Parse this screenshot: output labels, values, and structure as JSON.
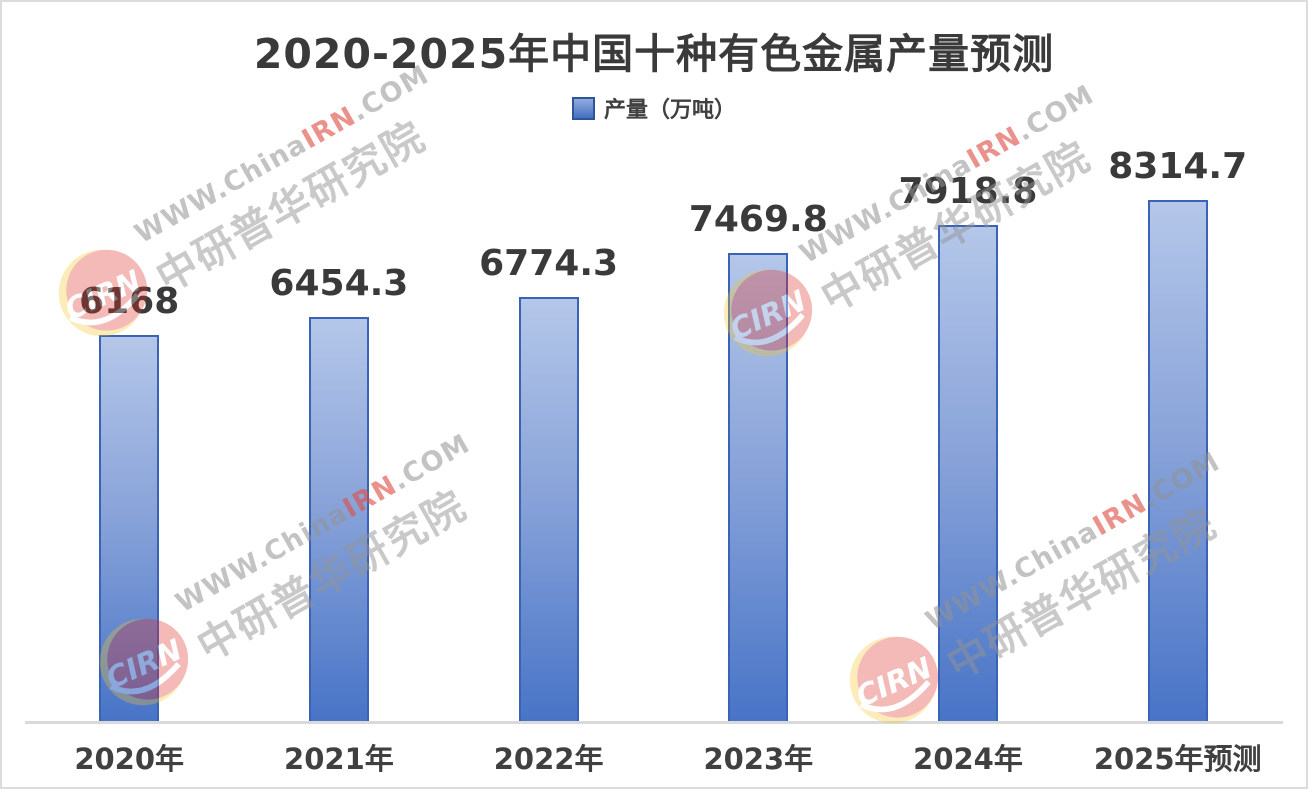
{
  "chart_data": {
    "type": "bar",
    "title": "2020-2025年中国十种有色金属产量预测",
    "legend_label": "产量（万吨）",
    "legend_position": "top-center",
    "categories": [
      "2020年",
      "2021年",
      "2022年",
      "2023年",
      "2024年",
      "2025年预测"
    ],
    "values": [
      6168,
      6454.3,
      6774.3,
      7469.8,
      7918.8,
      8314.7
    ],
    "value_labels": [
      "6168",
      "6454.3",
      "6774.3",
      "7469.8",
      "7918.8",
      "8314.7"
    ],
    "xlabel": "",
    "ylabel": "",
    "ylim": [
      0,
      8700
    ],
    "grid": false,
    "axis_line_color": "#d9d9d9",
    "bar_color_top": "#b4c7e9",
    "bar_color_bottom": "#4874c7",
    "bar_border_color": "#3a63b8",
    "title_color": "#3a3a3a",
    "label_color": "#404040"
  },
  "watermark": {
    "url_prefix": "WWW.China",
    "url_highlight": "IRN",
    "url_suffix": ".COM",
    "cn_text": "中研普华研究院",
    "logo_text": "CIRN",
    "text_gray": "#919191",
    "text_red": "#de4e46",
    "logo_red": "#dd2b22",
    "logo_yellow": "#f5c52c"
  }
}
